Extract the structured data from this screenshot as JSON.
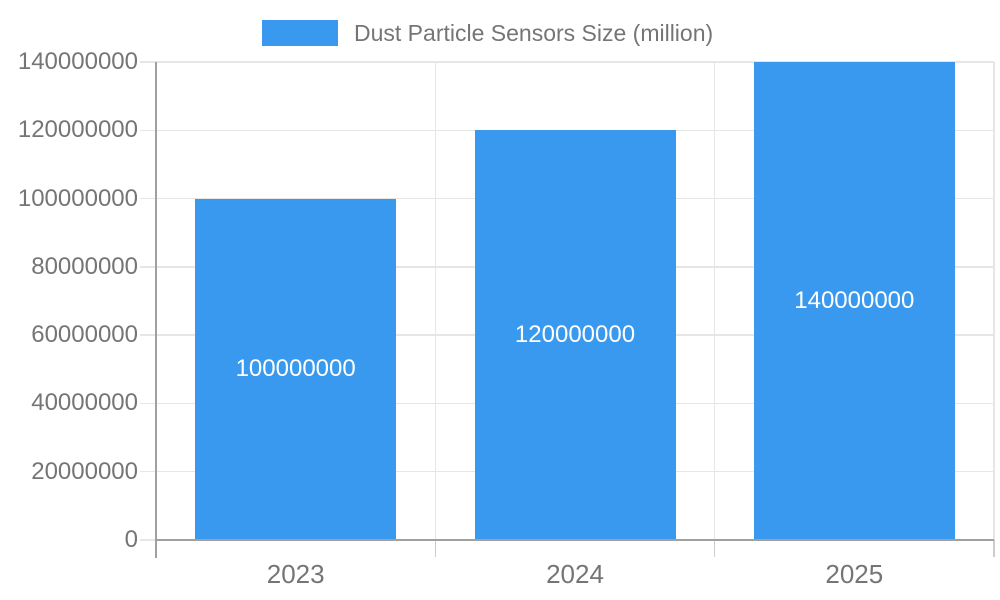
{
  "chart_data": {
    "type": "bar",
    "title": "Dust Particle Sensors Size (million)",
    "categories": [
      "2023",
      "2024",
      "2025"
    ],
    "values": [
      100000000,
      120000000,
      140000000
    ],
    "series": [
      {
        "name": "Dust Particle Sensors Size (million)",
        "values": [
          100000000,
          120000000,
          140000000
        ]
      }
    ],
    "data_labels": [
      "100000000",
      "120000000",
      "140000000"
    ],
    "xlabel": "",
    "ylabel": "",
    "ylim": [
      0,
      140000000
    ],
    "ytick_step": 20000000,
    "ytick_labels": [
      "0",
      "20000000",
      "40000000",
      "60000000",
      "80000000",
      "100000000",
      "120000000",
      "140000000"
    ],
    "grid": true,
    "legend_position": "top",
    "colors": {
      "bar": "#3999EE",
      "label_text": "#757575",
      "bar_label_text": "#FFFFFF",
      "gridline": "#E6E6E6",
      "minor_tick": "#CCCCCC",
      "axis_line": "#A0A0A0",
      "background": "#FFFFFF"
    }
  },
  "legend": {
    "label": "Dust Particle Sensors Size (million)"
  }
}
